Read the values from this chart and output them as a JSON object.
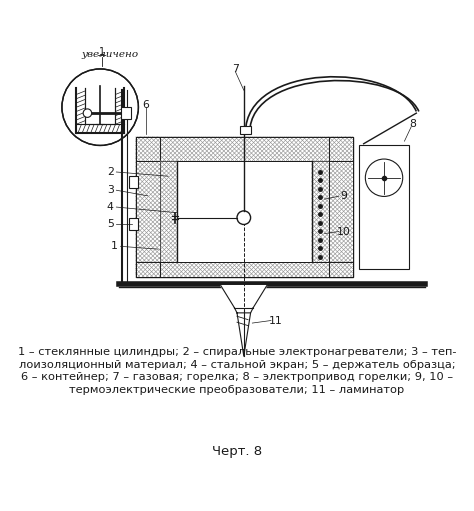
{
  "title": "Черт. 8",
  "caption_line1": "1 – стеклянные цилиндры; 2 – спиральные электронагреватели; 3 – теп-",
  "caption_line2": "лоизоляционный материал; 4 – стальной экран; 5 – держатель образца;",
  "caption_line3": "6 – контейнер; 7 – газовая; горелка; 8 – электропривод горелки; 9, 10 –",
  "caption_line4": "термоэлектрические преобразователи; 11 – ламинатор",
  "inset_sublabel": "увеличено",
  "bg_color": "#ffffff",
  "line_color": "#1a1a1a",
  "label_fontsize": 7.8,
  "title_fontsize": 9.5,
  "caption_fontsize": 8.2
}
